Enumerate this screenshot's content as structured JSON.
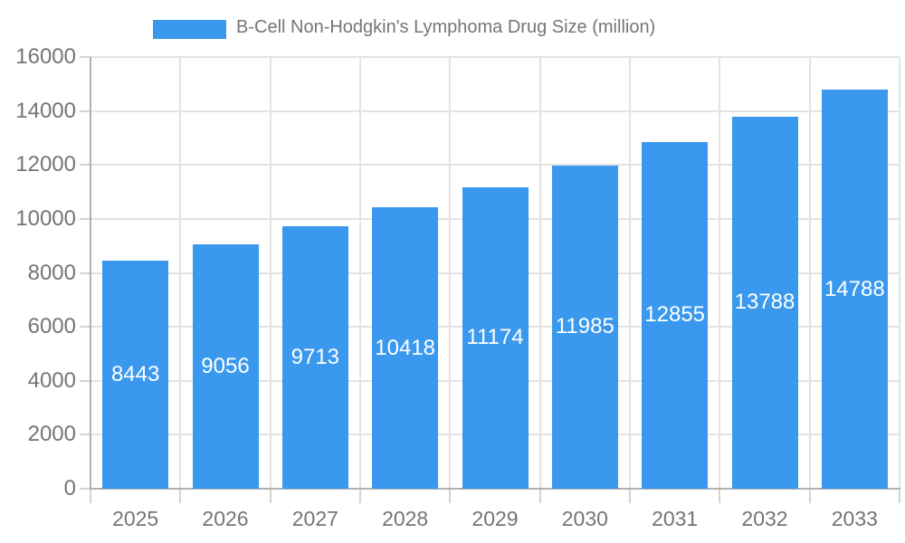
{
  "legend": {
    "position": "top",
    "label": "B-Cell Non-Hodgkin's Lymphoma Drug Size (million)"
  },
  "chart_data": {
    "type": "bar",
    "title": "B-Cell Non-Hodgkin's Lymphoma Drug Size (million)",
    "categories": [
      "2025",
      "2026",
      "2027",
      "2028",
      "2029",
      "2030",
      "2031",
      "2032",
      "2033"
    ],
    "values": [
      8443,
      9056,
      9713,
      10418,
      11174,
      11985,
      12855,
      13788,
      14788
    ],
    "xlabel": "",
    "ylabel": "",
    "ylim": [
      0,
      16000
    ],
    "ytick_step": 2000,
    "ytick_labels": [
      "0",
      "2000",
      "4000",
      "6000",
      "8000",
      "10000",
      "12000",
      "14000",
      "16000"
    ],
    "grid": true,
    "legend_position": "top",
    "background_color": "#FFFFFF",
    "bar_color": "#3A99EE",
    "value_label_color": "#FFFFFF",
    "axis_label_color": "#757575",
    "title_color": "#757575",
    "gridline_color": "#E3E3E3",
    "axis_line_color": "#B0B0B0",
    "tick_color": "#D4D4D4"
  }
}
